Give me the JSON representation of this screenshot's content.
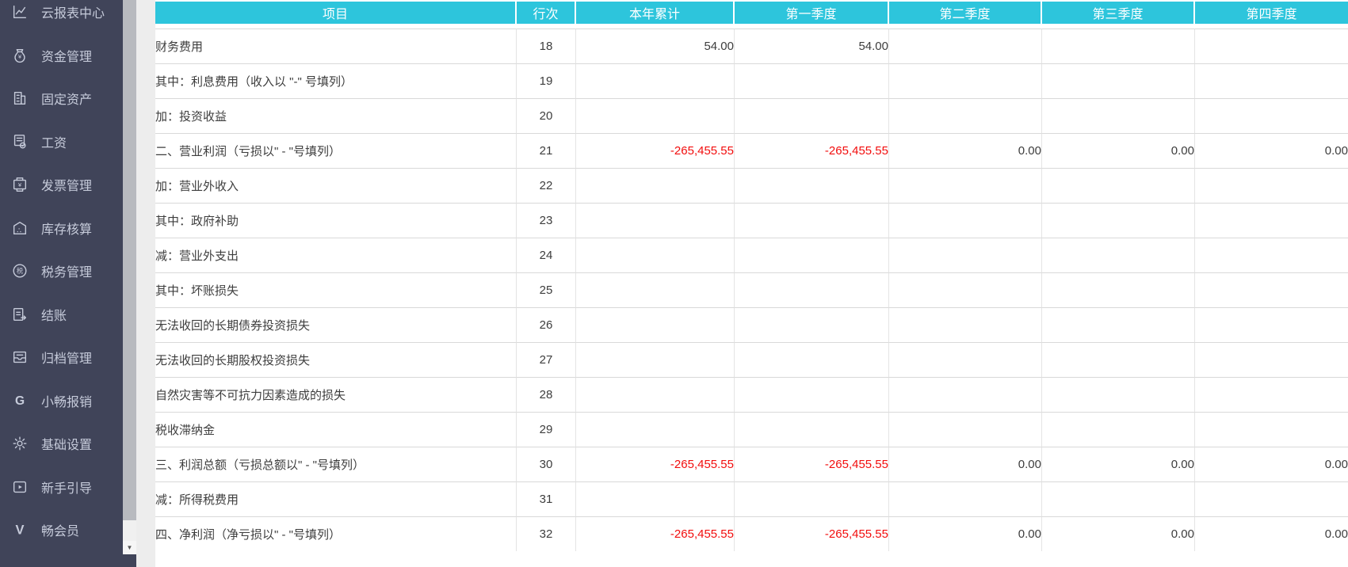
{
  "colors": {
    "accent": "#2dc5dc",
    "negative": "#f20d0d",
    "sidebar_bg": "#404459",
    "sidebar_text": "#c6cbda"
  },
  "sidebar": {
    "items": [
      {
        "id": "cloud-report-center",
        "label": "云报表中心",
        "icon": "line-chart-icon"
      },
      {
        "id": "funds-management",
        "label": "资金管理",
        "icon": "money-bag-icon"
      },
      {
        "id": "fixed-assets",
        "label": "固定资产",
        "icon": "building-icon"
      },
      {
        "id": "payroll",
        "label": "工资",
        "icon": "payroll-calculator-icon"
      },
      {
        "id": "invoice-management",
        "label": "发票管理",
        "icon": "invoice-icon"
      },
      {
        "id": "inventory-accounting",
        "label": "库存核算",
        "icon": "warehouse-icon"
      },
      {
        "id": "tax-management",
        "label": "税务管理",
        "icon": "tax-coin-icon"
      },
      {
        "id": "closing",
        "label": "结账",
        "icon": "closing-book-icon"
      },
      {
        "id": "archive-management",
        "label": "归档管理",
        "icon": "archive-box-icon"
      },
      {
        "id": "xiaochang-expense",
        "label": "小畅报销",
        "icon": "g-logo-icon"
      },
      {
        "id": "basic-settings",
        "label": "基础设置",
        "icon": "gear-icon"
      },
      {
        "id": "beginner-guide",
        "label": "新手引导",
        "icon": "tutorial-video-icon"
      },
      {
        "id": "chang-member",
        "label": "畅会员",
        "icon": "v-member-icon"
      }
    ],
    "scrollbar": {
      "down_arrow": "▼"
    }
  },
  "table": {
    "columns": [
      {
        "key": "item",
        "label": "项目"
      },
      {
        "key": "line-no",
        "label": "行次"
      },
      {
        "key": "ytd",
        "label": "本年累计"
      },
      {
        "key": "q1",
        "label": "第一季度"
      },
      {
        "key": "q2",
        "label": "第二季度"
      },
      {
        "key": "q3",
        "label": "第三季度"
      },
      {
        "key": "q4",
        "label": "第四季度"
      }
    ],
    "rows": [
      {
        "item": "财务费用",
        "indent": 1,
        "line": "18",
        "ytd": "54.00",
        "q1": "54.00",
        "q2": "",
        "q3": "",
        "q4": ""
      },
      {
        "item": "其中：利息费用（收入以 \"-\" 号填列）",
        "indent": 2,
        "line": "19",
        "ytd": "",
        "q1": "",
        "q2": "",
        "q3": "",
        "q4": ""
      },
      {
        "item": "加：投资收益",
        "indent": 1,
        "line": "20",
        "ytd": "",
        "q1": "",
        "q2": "",
        "q3": "",
        "q4": ""
      },
      {
        "item": "二、营业利润（亏损以\" - \"号填列）",
        "indent": 0,
        "line": "21",
        "ytd": "-265,455.55",
        "q1": "-265,455.55",
        "q2": "0.00",
        "q3": "0.00",
        "q4": "0.00"
      },
      {
        "item": "加：营业外收入",
        "indent": 1,
        "line": "22",
        "ytd": "",
        "q1": "",
        "q2": "",
        "q3": "",
        "q4": ""
      },
      {
        "item": "其中：政府补助",
        "indent": 2,
        "line": "23",
        "ytd": "",
        "q1": "",
        "q2": "",
        "q3": "",
        "q4": ""
      },
      {
        "item": "减：营业外支出",
        "indent": 1,
        "line": "24",
        "ytd": "",
        "q1": "",
        "q2": "",
        "q3": "",
        "q4": ""
      },
      {
        "item": "其中：坏账损失",
        "indent": 2,
        "line": "25",
        "ytd": "",
        "q1": "",
        "q2": "",
        "q3": "",
        "q4": ""
      },
      {
        "item": "无法收回的长期债券投资损失",
        "indent": 2,
        "line": "26",
        "ytd": "",
        "q1": "",
        "q2": "",
        "q3": "",
        "q4": ""
      },
      {
        "item": "无法收回的长期股权投资损失",
        "indent": 2,
        "line": "27",
        "ytd": "",
        "q1": "",
        "q2": "",
        "q3": "",
        "q4": ""
      },
      {
        "item": "自然灾害等不可抗力因素造成的损失",
        "indent": 2,
        "line": "28",
        "ytd": "",
        "q1": "",
        "q2": "",
        "q3": "",
        "q4": ""
      },
      {
        "item": "税收滞纳金",
        "indent": 2,
        "line": "29",
        "ytd": "",
        "q1": "",
        "q2": "",
        "q3": "",
        "q4": ""
      },
      {
        "item": "三、利润总额（亏损总额以\" - \"号填列）",
        "indent": 0,
        "line": "30",
        "ytd": "-265,455.55",
        "q1": "-265,455.55",
        "q2": "0.00",
        "q3": "0.00",
        "q4": "0.00"
      },
      {
        "item": "减：所得税费用",
        "indent": 1,
        "line": "31",
        "ytd": "",
        "q1": "",
        "q2": "",
        "q3": "",
        "q4": ""
      },
      {
        "item": "四、净利润（净亏损以\" - \"号填列）",
        "indent": 0,
        "line": "32",
        "ytd": "-265,455.55",
        "q1": "-265,455.55",
        "q2": "0.00",
        "q3": "0.00",
        "q4": "0.00"
      }
    ]
  }
}
